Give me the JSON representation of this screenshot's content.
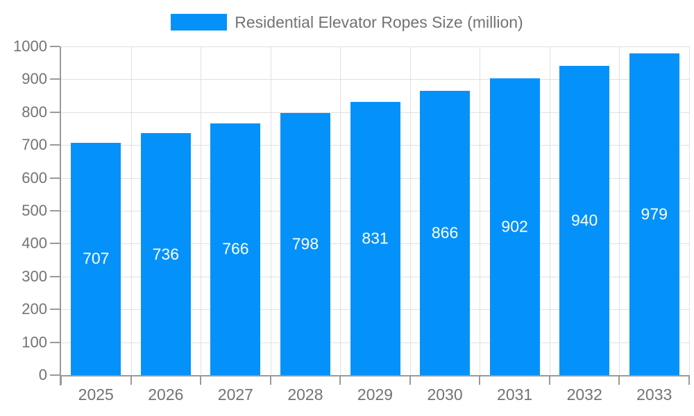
{
  "legend": {
    "label": "Residential Elevator Ropes Size (million)"
  },
  "chart_data": {
    "type": "bar",
    "title": "Residential Elevator Ropes Size (million)",
    "categories": [
      "2025",
      "2026",
      "2027",
      "2028",
      "2029",
      "2030",
      "2031",
      "2032",
      "2033"
    ],
    "values": [
      707,
      736,
      766,
      798,
      831,
      866,
      902,
      940,
      979
    ],
    "xlabel": "",
    "ylabel": "",
    "ylim": [
      0,
      1000
    ],
    "ytick_interval": 100,
    "yticks": [
      0,
      100,
      200,
      300,
      400,
      500,
      600,
      700,
      800,
      900,
      1000
    ],
    "grid": true,
    "legend_position": "top",
    "bar_labels_inside": true
  },
  "colors": {
    "bar": "#0591fa",
    "bar_label": "#ffffff",
    "axis": "#999999",
    "grid": "#e0e0e0",
    "tick_label": "#737373",
    "background": "#ffffff"
  }
}
